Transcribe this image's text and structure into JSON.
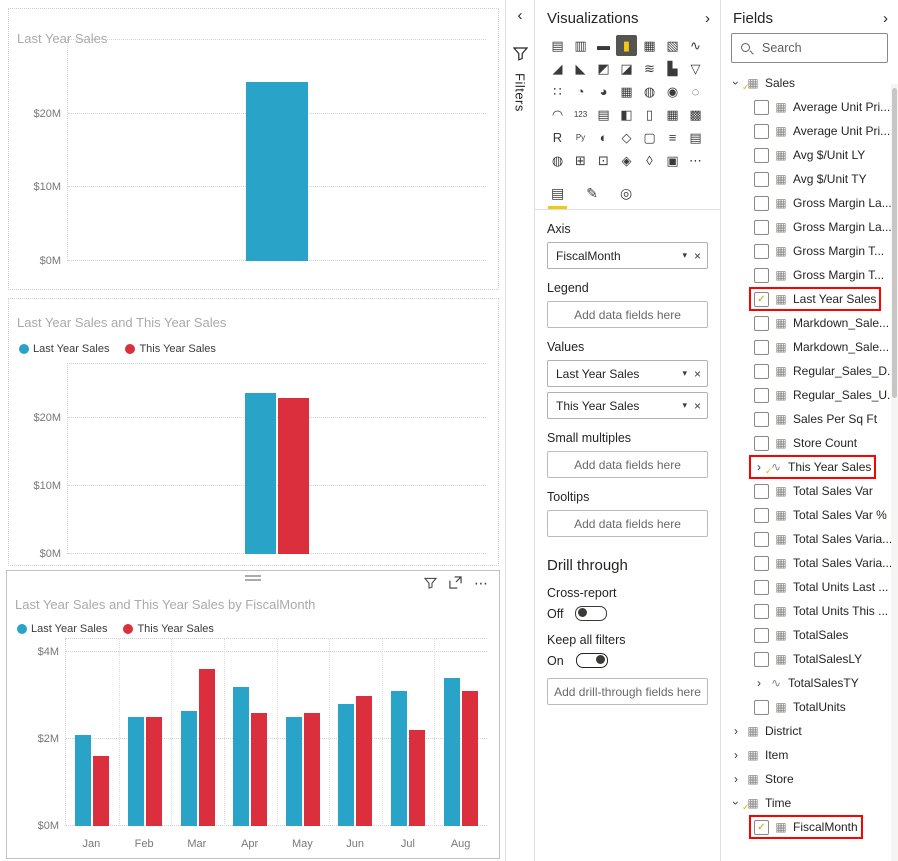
{
  "icons": {
    "pane_expand": "‹",
    "pane_collapse": "›",
    "chevron": "›",
    "dropdown": "▾",
    "remove": "×",
    "check": "✓",
    "ellipsis": "⋯",
    "field_glyphs": {
      "table": "▦",
      "kpi": "∿"
    }
  },
  "colors": {
    "teal": "#29A3C7",
    "red": "#DC2F3E",
    "accent_yellow": "#F2C811",
    "highlight_red": "#FF0000"
  },
  "chart_data": [
    {
      "type": "bar",
      "title": "Last Year Sales",
      "categories": [
        ""
      ],
      "series": [
        {
          "name": "Last Year Sales",
          "color": "#29A3C7",
          "values": [
            24.3
          ]
        }
      ],
      "yticks": [
        {
          "value": 0,
          "label": "$0M"
        },
        {
          "value": 10,
          "label": "$10M"
        },
        {
          "value": 20,
          "label": "$20M"
        }
      ],
      "ylim": [
        0,
        30
      ],
      "grid": true,
      "legend_position": "none",
      "show_legend": false,
      "show_x_labels": false
    },
    {
      "type": "bar",
      "title": "Last Year Sales and This Year Sales",
      "categories": [
        ""
      ],
      "series": [
        {
          "name": "Last Year Sales",
          "color": "#29A3C7",
          "values": [
            23.7
          ]
        },
        {
          "name": "This Year Sales",
          "color": "#DC2F3E",
          "values": [
            23.0
          ]
        }
      ],
      "yticks": [
        {
          "value": 0,
          "label": "$0M"
        },
        {
          "value": 10,
          "label": "$10M"
        },
        {
          "value": 20,
          "label": "$20M"
        }
      ],
      "ylim": [
        0,
        28
      ],
      "grid": true,
      "legend_position": "top-left",
      "show_legend": true,
      "show_x_labels": false
    },
    {
      "type": "bar",
      "title": "Last Year Sales and This Year Sales by FiscalMonth",
      "categories": [
        "Jan",
        "Feb",
        "Mar",
        "Apr",
        "May",
        "Jun",
        "Jul",
        "Aug"
      ],
      "series": [
        {
          "name": "Last Year Sales",
          "color": "#29A3C7",
          "values": [
            2.1,
            2.5,
            2.65,
            3.2,
            2.5,
            2.8,
            3.1,
            3.4
          ]
        },
        {
          "name": "This Year Sales",
          "color": "#DC2F3E",
          "values": [
            1.6,
            2.5,
            3.6,
            2.6,
            2.6,
            3.0,
            2.2,
            3.1
          ]
        }
      ],
      "yticks": [
        {
          "value": 0,
          "label": "$0M"
        },
        {
          "value": 2,
          "label": "$2M"
        },
        {
          "value": 4,
          "label": "$4M"
        }
      ],
      "ylim": [
        0,
        4.3
      ],
      "grid": true,
      "legend_position": "top-left",
      "show_legend": true,
      "show_x_labels": true,
      "selected": true
    }
  ],
  "filters_pane": {
    "title": "Filters"
  },
  "visualizations_pane": {
    "title": "Visualizations",
    "visual_icons": [
      {
        "name": "stacked-bar-chart",
        "glyph": "▤"
      },
      {
        "name": "stacked-column-chart",
        "glyph": "▥"
      },
      {
        "name": "clustered-bar-chart",
        "glyph": "▬"
      },
      {
        "name": "clustered-column-chart",
        "glyph": "▮",
        "selected": true
      },
      {
        "name": "100-stacked-bar-chart",
        "glyph": "▦"
      },
      {
        "name": "100-stacked-column-chart",
        "glyph": "▧"
      },
      {
        "name": "line-chart",
        "glyph": "∿"
      },
      {
        "name": "area-chart",
        "glyph": "◢"
      },
      {
        "name": "stacked-area-chart",
        "glyph": "◣"
      },
      {
        "name": "line-and-stacked-column-chart",
        "glyph": "◩"
      },
      {
        "name": "line-and-clustered-column-chart",
        "glyph": "◪"
      },
      {
        "name": "ribbon-chart",
        "glyph": "≋"
      },
      {
        "name": "waterfall-chart",
        "glyph": "▙"
      },
      {
        "name": "funnel-chart",
        "glyph": "▽"
      },
      {
        "name": "scatter-chart",
        "glyph": "∷"
      },
      {
        "name": "pie-chart",
        "glyph": "◔"
      },
      {
        "name": "donut-chart",
        "glyph": "◕"
      },
      {
        "name": "treemap",
        "glyph": "▦"
      },
      {
        "name": "map",
        "glyph": "◍"
      },
      {
        "name": "filled-map",
        "glyph": "◉"
      },
      {
        "name": "shape-map",
        "glyph": "◌"
      },
      {
        "name": "gauge",
        "glyph": "◠"
      },
      {
        "name": "card",
        "glyph": "123"
      },
      {
        "name": "multi-row-card",
        "glyph": "▤"
      },
      {
        "name": "kpi",
        "glyph": "◧"
      },
      {
        "name": "slicer",
        "glyph": "▯"
      },
      {
        "name": "table",
        "glyph": "▦"
      },
      {
        "name": "matrix",
        "glyph": "▩"
      },
      {
        "name": "r-script-visual",
        "glyph": "R"
      },
      {
        "name": "python-visual",
        "glyph": "Py"
      },
      {
        "name": "key-influencers",
        "glyph": "◐"
      },
      {
        "name": "decomposition-tree",
        "glyph": "◇"
      },
      {
        "name": "qa-visual",
        "glyph": "▢"
      },
      {
        "name": "smart-narrative",
        "glyph": "≡"
      },
      {
        "name": "paginated-report",
        "glyph": "▤"
      },
      {
        "name": "arcgis-map",
        "glyph": "◍"
      },
      {
        "name": "power-apps",
        "glyph": "⊞"
      },
      {
        "name": "power-automate",
        "glyph": "⊡"
      },
      {
        "name": "metrics",
        "glyph": "◈"
      },
      {
        "name": "azure-map",
        "glyph": "◊"
      },
      {
        "name": "custom-visual",
        "glyph": "▣"
      },
      {
        "name": "more-options",
        "glyph": "⋯"
      }
    ],
    "tabs": [
      {
        "name": "fields-tab",
        "glyph": "▤",
        "selected": true
      },
      {
        "name": "format-tab",
        "glyph": "✎"
      },
      {
        "name": "analytics-tab",
        "glyph": "◎"
      }
    ],
    "buckets": [
      {
        "label": "Axis",
        "fields": [
          "FiscalMonth"
        ]
      },
      {
        "label": "Legend",
        "fields": [],
        "placeholder": "Add data fields here"
      },
      {
        "label": "Values",
        "fields": [
          "Last Year Sales",
          "This Year Sales"
        ]
      },
      {
        "label": "Small multiples",
        "fields": [],
        "placeholder": "Add data fields here"
      },
      {
        "label": "Tooltips",
        "fields": [],
        "placeholder": "Add data fields here"
      }
    ],
    "drill_through": {
      "title": "Drill through",
      "cross_report_label": "Cross-report",
      "cross_report_state": "Off",
      "keep_all_filters_label": "Keep all filters",
      "keep_all_filters_state": "On",
      "placeholder": "Add drill-through fields here"
    }
  },
  "fields_pane": {
    "title": "Fields",
    "search_placeholder": "Search",
    "tables": [
      {
        "label": "Sales",
        "expanded": true,
        "checked": true,
        "fields": [
          {
            "label": "Average Unit Pri..."
          },
          {
            "label": "Average Unit Pri..."
          },
          {
            "label": "Avg $/Unit LY"
          },
          {
            "label": "Avg $/Unit TY"
          },
          {
            "label": "Gross Margin La..."
          },
          {
            "label": "Gross Margin La..."
          },
          {
            "label": "Gross Margin T..."
          },
          {
            "label": "Gross Margin T..."
          },
          {
            "label": "Last Year Sales",
            "checked": true,
            "highlighted": true
          },
          {
            "label": "Markdown_Sale..."
          },
          {
            "label": "Markdown_Sale..."
          },
          {
            "label": "Regular_Sales_D..."
          },
          {
            "label": "Regular_Sales_U..."
          },
          {
            "label": "Sales Per Sq Ft"
          },
          {
            "label": "Store Count"
          },
          {
            "label": "This Year Sales",
            "expandable": true,
            "checked": true,
            "highlighted": true,
            "icon": "kpi"
          },
          {
            "label": "Total Sales Var"
          },
          {
            "label": "Total Sales Var %"
          },
          {
            "label": "Total Sales Varia..."
          },
          {
            "label": "Total Sales Varia..."
          },
          {
            "label": "Total Units Last ..."
          },
          {
            "label": "Total Units This ..."
          },
          {
            "label": "TotalSales"
          },
          {
            "label": "TotalSalesLY"
          },
          {
            "label": "TotalSalesTY",
            "expandable": true,
            "icon": "kpi"
          },
          {
            "label": "TotalUnits"
          }
        ]
      },
      {
        "label": "District",
        "expanded": false
      },
      {
        "label": "Item",
        "expanded": false
      },
      {
        "label": "Store",
        "expanded": false
      },
      {
        "label": "Time",
        "expanded": true,
        "checked": true,
        "fields": [
          {
            "label": "FiscalMonth",
            "checked": true,
            "highlighted": true
          }
        ]
      }
    ]
  }
}
